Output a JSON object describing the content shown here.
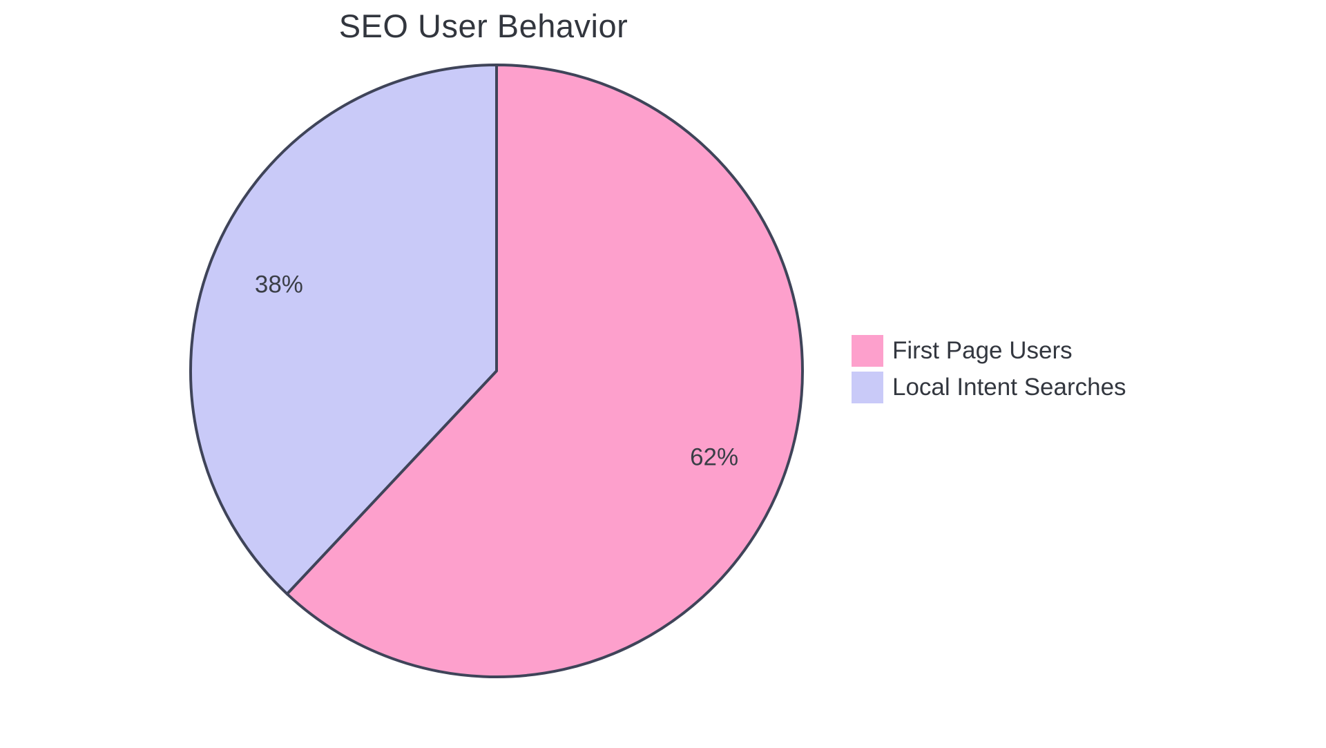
{
  "chart_data": {
    "type": "pie",
    "title": "SEO User Behavior",
    "categories": [
      "First Page Users",
      "Local Intent Searches"
    ],
    "values": [
      62,
      38
    ],
    "labels": [
      "62%",
      "38%"
    ],
    "colors": [
      "#FDA0CC",
      "#C9CAF8"
    ],
    "stroke_color": "#3F4459",
    "stroke_width": 4,
    "start_angle_deg": 0,
    "direction": "clockwise",
    "legend_position": "right",
    "title_color": "#32363E",
    "label_color": "#3A3E46"
  }
}
